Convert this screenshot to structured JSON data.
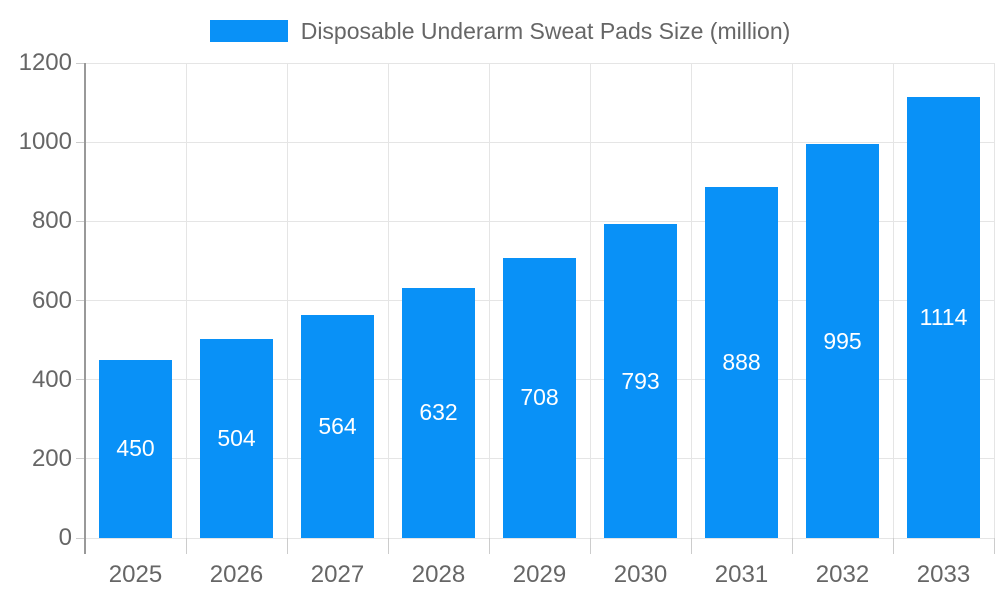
{
  "chart_data": {
    "type": "bar",
    "title": "Disposable Underarm Sweat Pads Size (million)",
    "categories": [
      "2025",
      "2026",
      "2027",
      "2028",
      "2029",
      "2030",
      "2031",
      "2032",
      "2033"
    ],
    "values": [
      450,
      504,
      564,
      632,
      708,
      793,
      888,
      995,
      1114
    ],
    "xlabel": "",
    "ylabel": "",
    "ylim": [
      0,
      1200
    ],
    "ytick_step": 200,
    "yticks": [
      0,
      200,
      400,
      600,
      800,
      1000,
      1200
    ],
    "grid": true,
    "legend_position": "top-center",
    "value_labels": "centered-inside-bars"
  },
  "colors": {
    "bar": "#0991f7",
    "bar_label": "#ffffff",
    "axis_text": "#666666",
    "legend_text": "#666666",
    "gridline": "#e5e5e5",
    "axis_line": "#999999",
    "tick": "#cccccc",
    "background": "#ffffff"
  }
}
